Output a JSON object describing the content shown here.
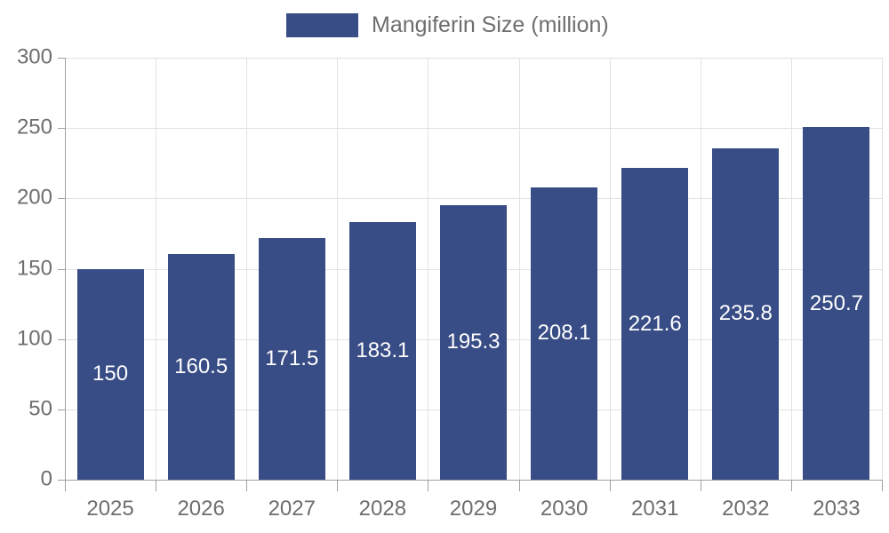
{
  "legend": {
    "label": "Mangiferin Size (million)"
  },
  "chart_data": {
    "type": "bar",
    "title": "",
    "series_name": "Mangiferin Size (million)",
    "categories": [
      "2025",
      "2026",
      "2027",
      "2028",
      "2029",
      "2030",
      "2031",
      "2032",
      "2033"
    ],
    "values": [
      150,
      160.5,
      171.5,
      183.1,
      195.3,
      208.1,
      221.6,
      235.8,
      250.7
    ],
    "value_labels": [
      "150",
      "160.5",
      "171.5",
      "183.1",
      "195.3",
      "208.1",
      "221.6",
      "235.8",
      "250.7"
    ],
    "xlabel": "",
    "ylabel": "",
    "ylim": [
      0,
      300
    ],
    "yticks": [
      0,
      50,
      100,
      150,
      200,
      250,
      300
    ],
    "grid": true,
    "legend_position": "top",
    "colors": {
      "bar": "#384c85",
      "bar_label": "#ffffff",
      "axis_text": "#6e6e6e",
      "grid_line": "#e2e2e2",
      "axis_line": "#a0a0a0"
    }
  }
}
